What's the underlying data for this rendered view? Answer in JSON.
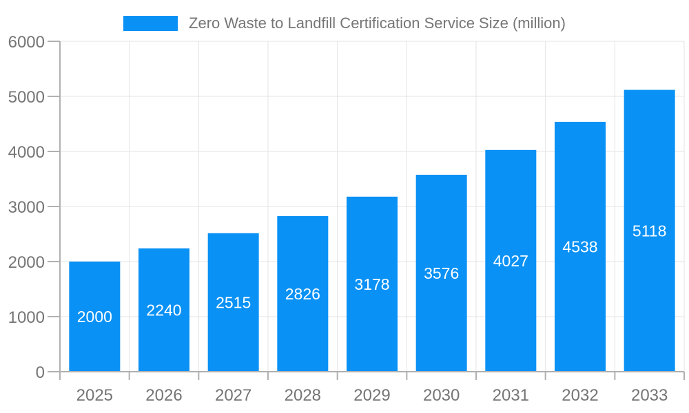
{
  "chart_data": {
    "type": "bar",
    "title": "Zero Waste to Landfill Certification Service Size (million)",
    "legend_position": "top",
    "categories": [
      "2025",
      "2026",
      "2027",
      "2028",
      "2029",
      "2030",
      "2031",
      "2032",
      "2033"
    ],
    "values": [
      2000,
      2240,
      2515,
      2826,
      3178,
      3576,
      4027,
      4538,
      5118
    ],
    "xlabel": "",
    "ylabel": "",
    "ylim": [
      0,
      6000
    ],
    "ytick_step": 1000,
    "grid": true,
    "bar_color": "#0991f5",
    "value_label_color": "#ffffff",
    "axis_text_color": "#757575",
    "grid_color": "#e3e3e3",
    "axis_line_color": "#b0b0b0",
    "background_color": "#ffffff"
  }
}
